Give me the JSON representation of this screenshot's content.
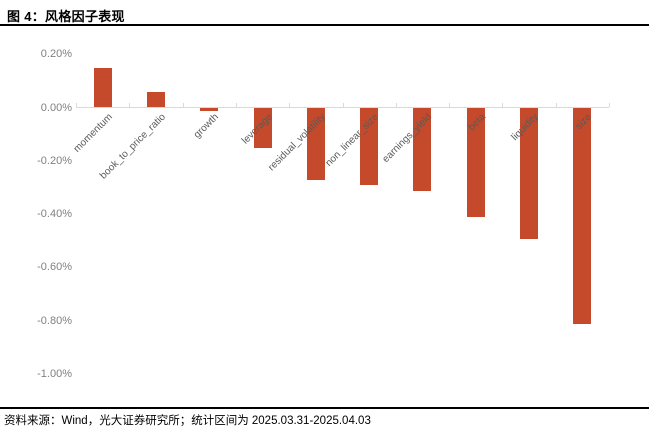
{
  "meta": {
    "title": "图 4：风格因子表现",
    "source_note": "资料来源：Wind，光大证券研究所；统计区间为 2025.03.31-2025.04.03"
  },
  "chart_data": {
    "type": "bar",
    "title": "图 4：风格因子表现",
    "categories": [
      "momentum",
      "book_to_price_ratio",
      "growth",
      "leverage",
      "residual_volatility",
      "non_linear_size",
      "earnings_yield",
      "beta",
      "liquidity",
      "size"
    ],
    "values": [
      0.15,
      0.06,
      -0.01,
      -0.15,
      -0.27,
      -0.29,
      -0.31,
      -0.41,
      -0.49,
      -0.81
    ],
    "unit": "%",
    "xlabel": "",
    "ylabel": "",
    "ylim": [
      -1.0,
      0.2
    ],
    "yticks": [
      0.2,
      0.0,
      -0.2,
      -0.4,
      -0.6,
      -0.8,
      -1.0
    ],
    "ytick_labels": [
      "0.20%",
      "0.00%",
      "-0.20%",
      "-0.40%",
      "-0.60%",
      "-0.80%",
      "-1.00%"
    ],
    "grid": false,
    "legend_position": "none",
    "bar_color": "#c54a2b",
    "axis_color": "#d9d9d9",
    "ytick_label_color": "#808080",
    "category_label_color": "#595959"
  }
}
